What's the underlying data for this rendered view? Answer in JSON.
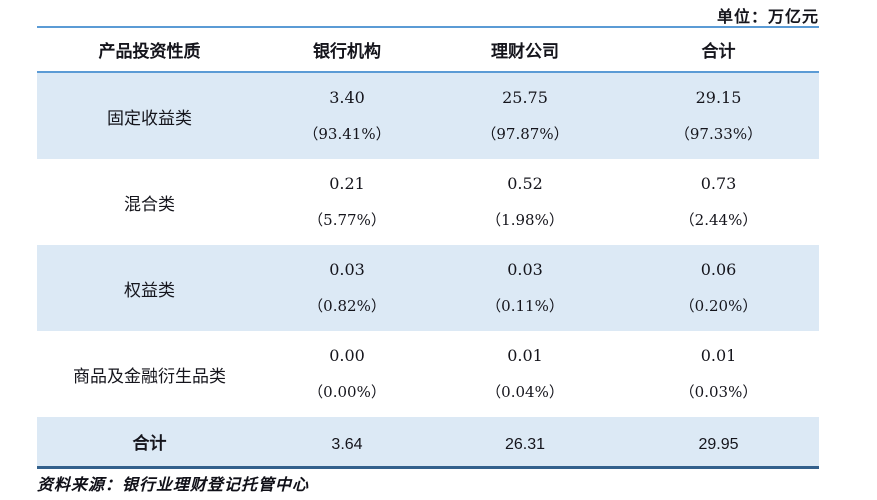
{
  "unit_label": "单位：万亿元",
  "source_note": "资料来源：银行业理财登记托管中心",
  "colors": {
    "accent_line": "#5b9bd5",
    "bottom_line": "#33608c",
    "row_shade": "#dce9f5",
    "text": "#15151c"
  },
  "table": {
    "headers": [
      "产品投资性质",
      "银行机构",
      "理财公司",
      "合计"
    ],
    "rows": [
      {
        "label": "固定收益类",
        "cells": [
          {
            "value": "3.40",
            "pct": "（93.41%）"
          },
          {
            "value": "25.75",
            "pct": "（97.87%）"
          },
          {
            "value": "29.15",
            "pct": "（97.33%）"
          }
        ]
      },
      {
        "label": "混合类",
        "cells": [
          {
            "value": "0.21",
            "pct": "（5.77%）"
          },
          {
            "value": "0.52",
            "pct": "（1.98%）"
          },
          {
            "value": "0.73",
            "pct": "（2.44%）"
          }
        ]
      },
      {
        "label": "权益类",
        "cells": [
          {
            "value": "0.03",
            "pct": "（0.82%）"
          },
          {
            "value": "0.03",
            "pct": "（0.11%）"
          },
          {
            "value": "0.06",
            "pct": "（0.20%）"
          }
        ]
      },
      {
        "label": "商品及金融衍生品类",
        "cells": [
          {
            "value": "0.00",
            "pct": "（0.00%）"
          },
          {
            "value": "0.01",
            "pct": "（0.04%）"
          },
          {
            "value": "0.01",
            "pct": "（0.03%）"
          }
        ]
      }
    ],
    "total_row": {
      "label": "合计",
      "values": [
        "3.64",
        "26.31",
        "29.95"
      ]
    }
  }
}
